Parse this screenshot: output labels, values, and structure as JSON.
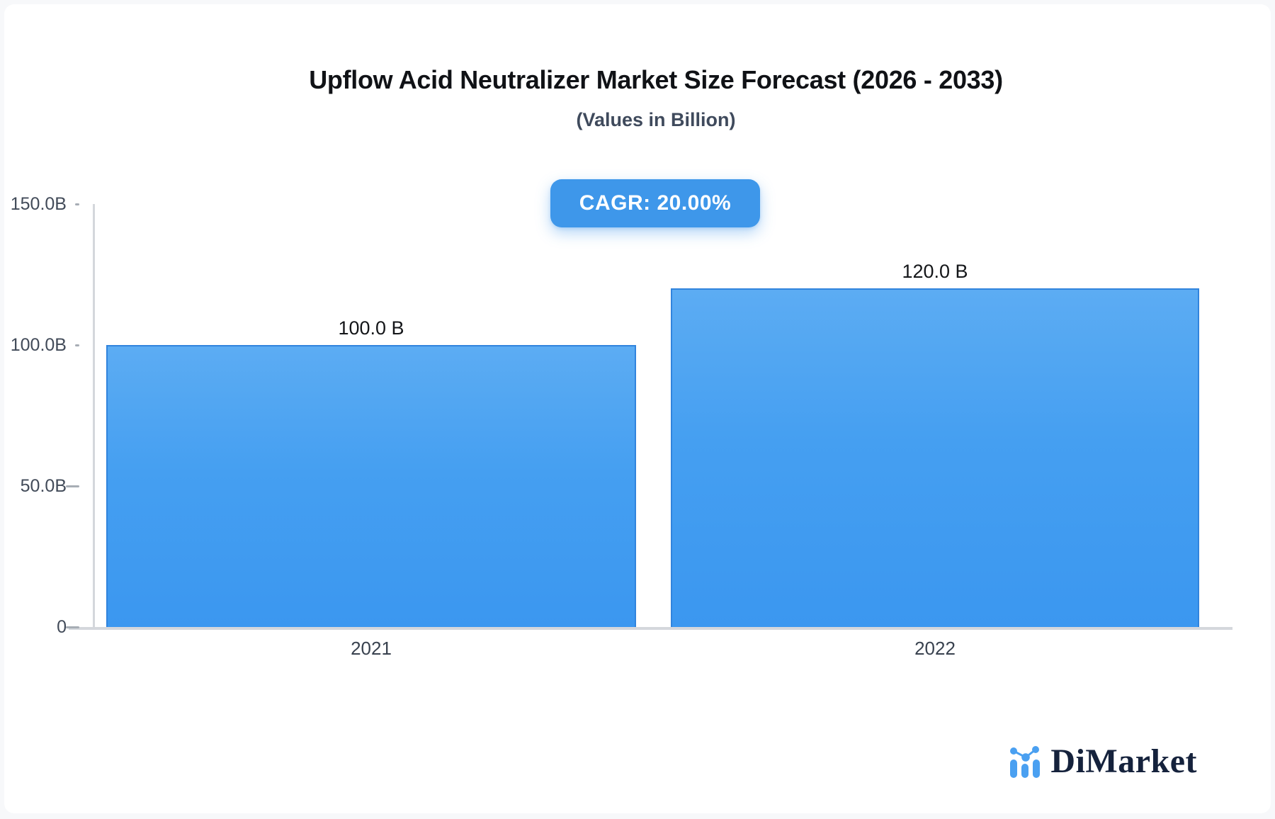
{
  "page": {
    "background_color": "#f7f8fa",
    "card_color": "#ffffff"
  },
  "header": {
    "title": "Upflow Acid Neutralizer Market Size Forecast (2026 - 2033)",
    "subtitle": "(Values in Billion)",
    "cagr_badge": "CAGR: 20.00%",
    "badge_color": "#3e97ea"
  },
  "chart_data": {
    "type": "bar",
    "title": "Upflow Acid Neutralizer Market Size Forecast (2026 - 2033)",
    "subtitle": "(Values in Billion)",
    "cagr": "20.00%",
    "unit": "Billion",
    "categories": [
      "2021",
      "2022"
    ],
    "values": [
      100.0,
      120.0
    ],
    "value_labels": [
      "100.0 B",
      "120.0 B"
    ],
    "ylim": [
      0,
      150
    ],
    "yticks": [
      {
        "label": "150.0B",
        "value": 150
      },
      {
        "label": "100.0B",
        "value": 100
      },
      {
        "label": "50.0B",
        "value": 50
      },
      {
        "label": "0",
        "value": 0
      }
    ],
    "grid": false,
    "legend": false,
    "bar_color_top": "#5cacf3",
    "bar_color_bottom": "#3b97f0",
    "bar_border_color": "#3184dd",
    "axis_color": "#d4d7dc"
  },
  "logo": {
    "text": "DiMarket",
    "icon": "mini-bar-chart-icon",
    "icon_color": "#4aa0f1",
    "text_color": "#15223c"
  }
}
